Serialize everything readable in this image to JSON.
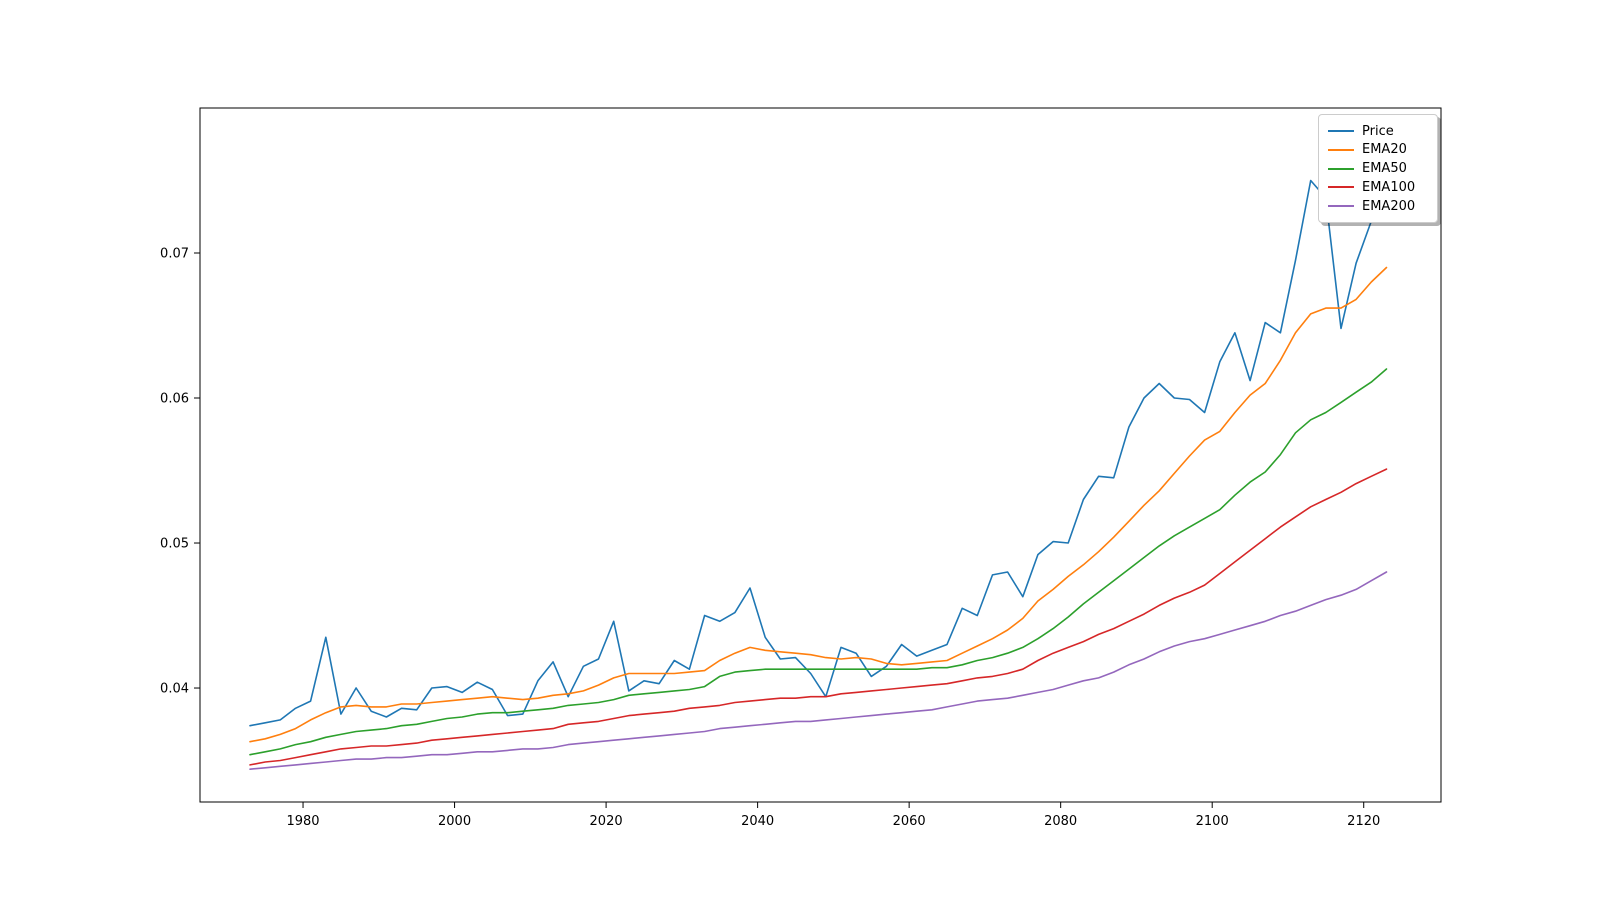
{
  "figure": {
    "background": "#ffffff",
    "spine_color": "#000000",
    "tick_label_color": "#000000"
  },
  "chart_data": {
    "type": "line",
    "title": "",
    "xlabel": "",
    "ylabel": "",
    "grid": false,
    "xlim": [
      1966.4,
      2130.2
    ],
    "ylim": [
      0.03214,
      0.08
    ],
    "x_ticks": [
      {
        "value": 1980,
        "label": "1980"
      },
      {
        "value": 2000,
        "label": "2000"
      },
      {
        "value": 2020,
        "label": "2020"
      },
      {
        "value": 2040,
        "label": "2040"
      },
      {
        "value": 2060,
        "label": "2060"
      },
      {
        "value": 2080,
        "label": "2080"
      },
      {
        "value": 2100,
        "label": "2100"
      },
      {
        "value": 2120,
        "label": "2120"
      }
    ],
    "y_ticks": [
      {
        "value": 0.04,
        "label": "0.04"
      },
      {
        "value": 0.05,
        "label": "0.05"
      },
      {
        "value": 0.06,
        "label": "0.06"
      },
      {
        "value": 0.07,
        "label": "0.07"
      }
    ],
    "legend": {
      "position": "upper right",
      "shadow": true,
      "entries": [
        "Price",
        "EMA20",
        "EMA50",
        "EMA100",
        "EMA200"
      ]
    },
    "x": [
      1973,
      1975,
      1977,
      1979,
      1981,
      1983,
      1985,
      1987,
      1989,
      1991,
      1993,
      1995,
      1997,
      1999,
      2001,
      2003,
      2005,
      2007,
      2009,
      2011,
      2013,
      2015,
      2017,
      2019,
      2021,
      2023,
      2025,
      2027,
      2029,
      2031,
      2033,
      2035,
      2037,
      2039,
      2041,
      2043,
      2045,
      2047,
      2049,
      2051,
      2053,
      2055,
      2057,
      2059,
      2061,
      2063,
      2065,
      2067,
      2069,
      2071,
      2073,
      2075,
      2077,
      2079,
      2081,
      2083,
      2085,
      2087,
      2089,
      2091,
      2093,
      2095,
      2097,
      2099,
      2101,
      2103,
      2105,
      2107,
      2109,
      2111,
      2113,
      2115,
      2117,
      2119,
      2121,
      2123
    ],
    "series": [
      {
        "name": "Price",
        "color": "#1f77b4",
        "values": [
          0.0374,
          0.0376,
          0.0378,
          0.0386,
          0.0391,
          0.0435,
          0.0382,
          0.04,
          0.0384,
          0.038,
          0.0386,
          0.0385,
          0.04,
          0.0401,
          0.0397,
          0.0404,
          0.0399,
          0.0381,
          0.0382,
          0.0405,
          0.0418,
          0.0394,
          0.0415,
          0.042,
          0.0446,
          0.0398,
          0.0405,
          0.0403,
          0.0419,
          0.0413,
          0.045,
          0.0446,
          0.0452,
          0.0469,
          0.0435,
          0.042,
          0.0421,
          0.041,
          0.0394,
          0.0428,
          0.0424,
          0.0408,
          0.0415,
          0.043,
          0.0422,
          0.0426,
          0.043,
          0.0455,
          0.045,
          0.0478,
          0.048,
          0.0463,
          0.0492,
          0.0501,
          0.05,
          0.053,
          0.0546,
          0.0545,
          0.058,
          0.06,
          0.061,
          0.06,
          0.0599,
          0.059,
          0.0625,
          0.0645,
          0.0612,
          0.0652,
          0.0645,
          0.0695,
          0.075,
          0.0738,
          0.0648,
          0.0693,
          0.0722,
          0.0735
        ]
      },
      {
        "name": "EMA20",
        "color": "#ff7f0e",
        "values": [
          0.0363,
          0.0365,
          0.0368,
          0.0372,
          0.0378,
          0.0383,
          0.0387,
          0.0388,
          0.0387,
          0.0387,
          0.0389,
          0.0389,
          0.039,
          0.0391,
          0.0392,
          0.0393,
          0.0394,
          0.0393,
          0.0392,
          0.0393,
          0.0395,
          0.0396,
          0.0398,
          0.0402,
          0.0407,
          0.041,
          0.041,
          0.041,
          0.041,
          0.0411,
          0.0412,
          0.0419,
          0.0424,
          0.0428,
          0.0426,
          0.0425,
          0.0424,
          0.0423,
          0.0421,
          0.042,
          0.0421,
          0.042,
          0.0417,
          0.0416,
          0.0417,
          0.0418,
          0.0419,
          0.0424,
          0.0429,
          0.0434,
          0.044,
          0.0448,
          0.046,
          0.0468,
          0.0477,
          0.0485,
          0.0494,
          0.0504,
          0.0515,
          0.0526,
          0.0536,
          0.0548,
          0.056,
          0.0571,
          0.0577,
          0.059,
          0.0602,
          0.061,
          0.0626,
          0.0645,
          0.0658,
          0.0662,
          0.0662,
          0.0668,
          0.068,
          0.069
        ]
      },
      {
        "name": "EMA50",
        "color": "#2ca02c",
        "values": [
          0.0354,
          0.0356,
          0.0358,
          0.0361,
          0.0363,
          0.0366,
          0.0368,
          0.037,
          0.0371,
          0.0372,
          0.0374,
          0.0375,
          0.0377,
          0.0379,
          0.038,
          0.0382,
          0.0383,
          0.0383,
          0.0384,
          0.0385,
          0.0386,
          0.0388,
          0.0389,
          0.039,
          0.0392,
          0.0395,
          0.0396,
          0.0397,
          0.0398,
          0.0399,
          0.0401,
          0.0408,
          0.0411,
          0.0412,
          0.0413,
          0.0413,
          0.0413,
          0.0413,
          0.0413,
          0.0413,
          0.0413,
          0.0413,
          0.0413,
          0.0413,
          0.0413,
          0.0414,
          0.0414,
          0.0416,
          0.0419,
          0.0421,
          0.0424,
          0.0428,
          0.0434,
          0.0441,
          0.0449,
          0.0458,
          0.0466,
          0.0474,
          0.0482,
          0.049,
          0.0498,
          0.0505,
          0.0511,
          0.0517,
          0.0523,
          0.0533,
          0.0542,
          0.0549,
          0.0561,
          0.0576,
          0.0585,
          0.059,
          0.0597,
          0.0604,
          0.0611,
          0.062
        ]
      },
      {
        "name": "EMA100",
        "color": "#d62728",
        "values": [
          0.0347,
          0.0349,
          0.035,
          0.0352,
          0.0354,
          0.0356,
          0.0358,
          0.0359,
          0.036,
          0.036,
          0.0361,
          0.0362,
          0.0364,
          0.0365,
          0.0366,
          0.0367,
          0.0368,
          0.0369,
          0.037,
          0.0371,
          0.0372,
          0.0375,
          0.0376,
          0.0377,
          0.0379,
          0.0381,
          0.0382,
          0.0383,
          0.0384,
          0.0386,
          0.0387,
          0.0388,
          0.039,
          0.0391,
          0.0392,
          0.0393,
          0.0393,
          0.0394,
          0.0394,
          0.0396,
          0.0397,
          0.0398,
          0.0399,
          0.04,
          0.0401,
          0.0402,
          0.0403,
          0.0405,
          0.0407,
          0.0408,
          0.041,
          0.0413,
          0.0419,
          0.0424,
          0.0428,
          0.0432,
          0.0437,
          0.0441,
          0.0446,
          0.0451,
          0.0457,
          0.0462,
          0.0466,
          0.0471,
          0.0479,
          0.0487,
          0.0495,
          0.0503,
          0.0511,
          0.0518,
          0.0525,
          0.053,
          0.0535,
          0.0541,
          0.0546,
          0.0551
        ]
      },
      {
        "name": "EMA200",
        "color": "#9467bd",
        "values": [
          0.0344,
          0.0345,
          0.0346,
          0.0347,
          0.0348,
          0.0349,
          0.035,
          0.0351,
          0.0351,
          0.0352,
          0.0352,
          0.0353,
          0.0354,
          0.0354,
          0.0355,
          0.0356,
          0.0356,
          0.0357,
          0.0358,
          0.0358,
          0.0359,
          0.0361,
          0.0362,
          0.0363,
          0.0364,
          0.0365,
          0.0366,
          0.0367,
          0.0368,
          0.0369,
          0.037,
          0.0372,
          0.0373,
          0.0374,
          0.0375,
          0.0376,
          0.0377,
          0.0377,
          0.0378,
          0.0379,
          0.038,
          0.0381,
          0.0382,
          0.0383,
          0.0384,
          0.0385,
          0.0387,
          0.0389,
          0.0391,
          0.0392,
          0.0393,
          0.0395,
          0.0397,
          0.0399,
          0.0402,
          0.0405,
          0.0407,
          0.0411,
          0.0416,
          0.042,
          0.0425,
          0.0429,
          0.0432,
          0.0434,
          0.0437,
          0.044,
          0.0443,
          0.0446,
          0.045,
          0.0453,
          0.0457,
          0.0461,
          0.0464,
          0.0468,
          0.0474,
          0.048
        ]
      }
    ]
  }
}
